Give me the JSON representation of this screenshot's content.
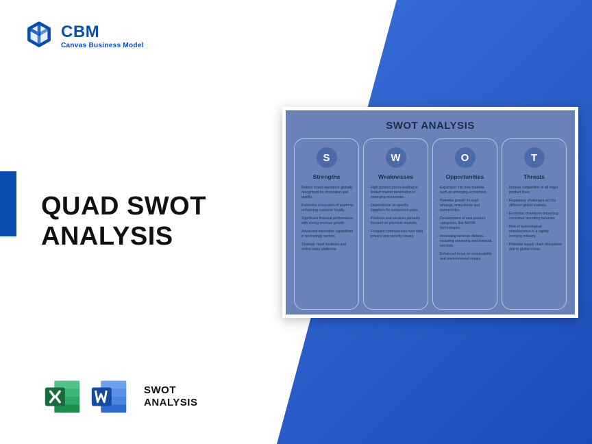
{
  "brand": {
    "title": "CBM",
    "subtitle": "Canvas Business Model",
    "logo_color": "#0a4fb0"
  },
  "main_title_line1": "QUAD SWOT",
  "main_title_line2": "ANALYSIS",
  "footer": {
    "label_line1": "SWOT",
    "label_line2": "ANALYSIS",
    "excel_color": "#1e8e4f",
    "word_color": "#1f5fc9"
  },
  "swot": {
    "card_bg": "#6b82b8",
    "title": "SWOT ANALYSIS",
    "columns": [
      {
        "letter": "S",
        "label": "Strengths",
        "items": [
          "Robust brand reputation globally recognized for innovation and quality.",
          "Extensive ecosystem of products enhancing customer loyalty.",
          "Significant financial performance with strong revenue growth.",
          "Advanced innovation capabilities in technology sectors.",
          "Strategic retail locations and online sales platforms."
        ]
      },
      {
        "letter": "W",
        "label": "Weaknesses",
        "items": [
          "High product prices leading to limited market penetration in emerging economies.",
          "Dependence on specific suppliers for component parts.",
          "Products and services primarily focused on premium markets.",
          "Frequent controversies over data privacy and security issues."
        ]
      },
      {
        "letter": "O",
        "label": "Opportunities",
        "items": [
          "Expansion into new markets such as emerging economies.",
          "Potential growth through strategic acquisitions and partnerships.",
          "Development of new product categories, like AR/VR technologies.",
          "Increasing services division, including streaming and financial services.",
          "Enhanced focus on sustainability and environmental impact."
        ]
      },
      {
        "letter": "T",
        "label": "Threats",
        "items": [
          "Intense competition in all major product lines.",
          "Regulatory challenges across different global markets.",
          "Economic downturns impacting consumer spending behavior.",
          "Risk of technological obsolescence in a rapidly evolving industry.",
          "Potential supply chain disruptions due to global crises."
        ]
      }
    ]
  }
}
